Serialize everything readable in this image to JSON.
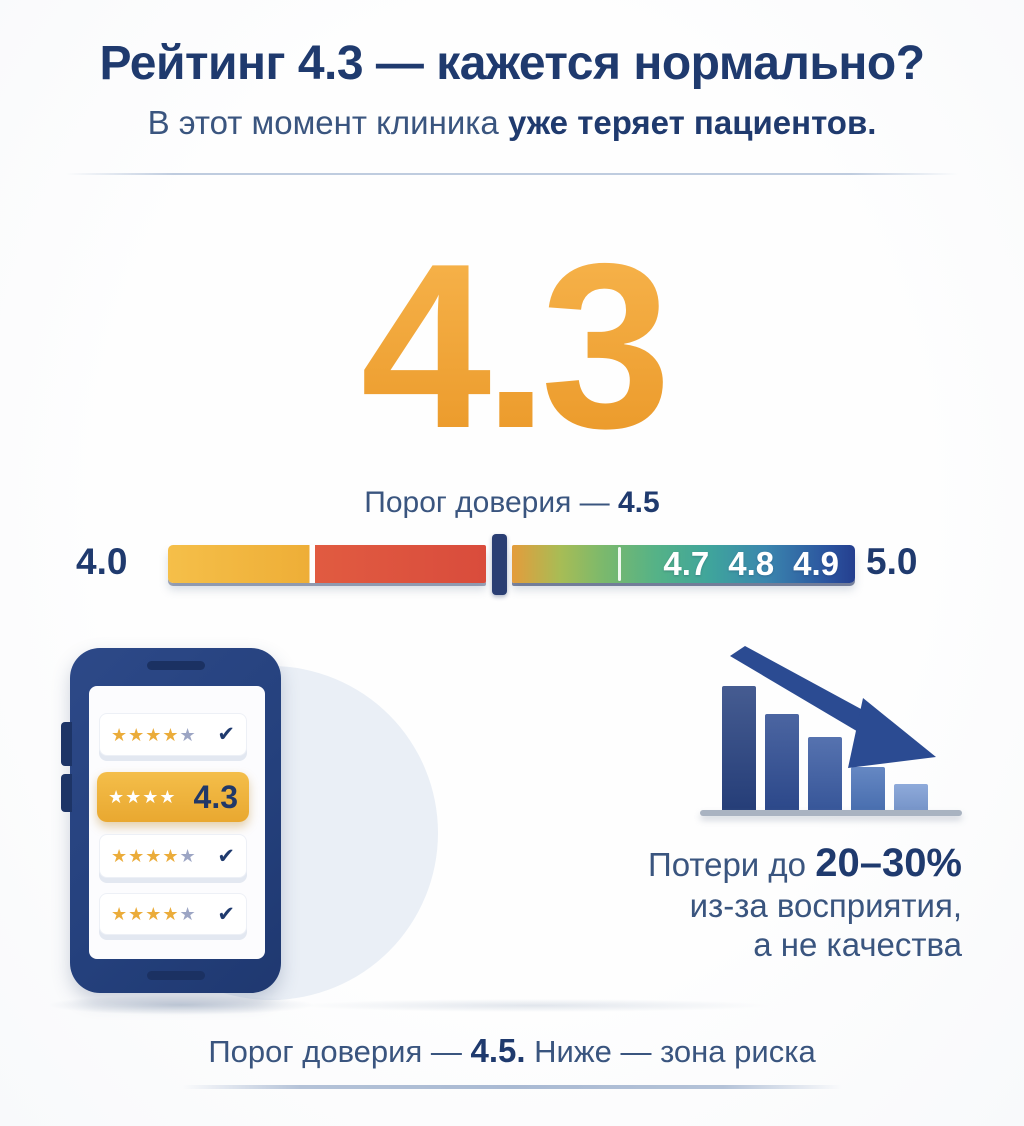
{
  "colors": {
    "navy": "#1F3A6E",
    "navy_soft": "#3A557F",
    "orange": "#EC9C2D",
    "gold": "#EEAE37",
    "red": "#D94C3C",
    "gauge_green": "#55B287",
    "gauge_blue": "#2B549F",
    "marker": "#2A3E73",
    "star_gold": "#EBAC3A",
    "star_gray": "#9CA5C4",
    "phone_frame": "#24407C",
    "circle_bg": "#EAEFF6",
    "baseline": "#A9B3C1",
    "bars": [
      "#27417F",
      "#2E4C92",
      "#3A5BA2",
      "#4C74B9",
      "#7C9CD4"
    ]
  },
  "header": {
    "title": "Рейтинг 4.3 — кажется нормально?",
    "subtitle_regular": "В этот момент клиника ",
    "subtitle_bold": "уже теряет пациентов."
  },
  "rating": {
    "value": "4.3",
    "threshold_label": "Порог доверия — ",
    "threshold_value": "4.5"
  },
  "gauge": {
    "min_label": "4.0",
    "max_label": "5.0",
    "tick_labels": [
      "4.7",
      "4.8",
      "4.9"
    ]
  },
  "phone": {
    "review_cards": [
      {
        "stars_gold": "★★★★",
        "star_gray": "★",
        "check": "✔"
      },
      {
        "stars_white": "★★★★",
        "value": "4.3"
      },
      {
        "stars_gold": "★★★★",
        "star_gray": "★",
        "check": "✔"
      },
      {
        "stars_gold": "★★★★",
        "star_gray": "★",
        "check": "✔"
      }
    ]
  },
  "chart_data": {
    "type": "bar",
    "categories": [
      "",
      "",
      "",
      "",
      ""
    ],
    "values": [
      126,
      98,
      75,
      45,
      28
    ],
    "title": "",
    "xlabel": "",
    "ylabel": "",
    "annotation": "declining trend arrow"
  },
  "loss": {
    "prefix": "Потери до ",
    "percent": "20–30%",
    "line2": "из-за восприятия,",
    "line3": "а не качества"
  },
  "footer": {
    "label": "Порог доверия — ",
    "value": "4.5.",
    "suffix": " Ниже — зона риска"
  }
}
